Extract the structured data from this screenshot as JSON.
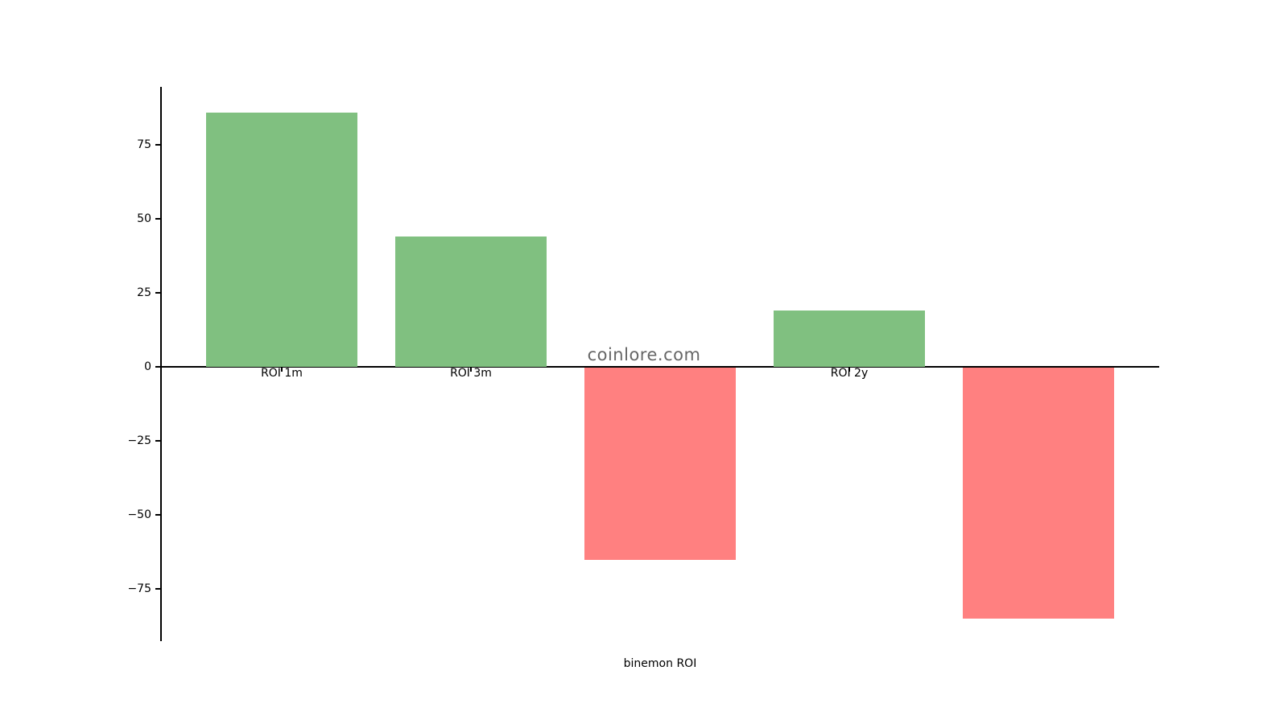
{
  "chart_data": {
    "type": "bar",
    "title": "binemon ROI",
    "watermark": "coinlore.com",
    "categories": [
      "ROI 1m",
      "ROI 3m",
      "",
      "ROI 2y",
      ""
    ],
    "category_labels_visible": [
      true,
      true,
      false,
      true,
      false
    ],
    "values": [
      86,
      44,
      -65,
      19,
      -85
    ],
    "bar_colors": [
      "#80c080",
      "#80c080",
      "#ff8080",
      "#80c080",
      "#ff8080"
    ],
    "positive_color": "#80c080",
    "negative_color": "#ff8080",
    "yticks": [
      75,
      50,
      25,
      0,
      -25,
      -50,
      -75
    ],
    "ytick_labels": [
      "75",
      "50",
      "25",
      "0",
      "−25",
      "−50",
      "−75"
    ],
    "ylim": [
      -93,
      95
    ],
    "xlabel": "",
    "ylabel": "",
    "grid": false,
    "legend": "none",
    "axis_color": "#000000",
    "text_color": "#000000",
    "watermark_color": "#666666",
    "background": "#ffffff"
  }
}
